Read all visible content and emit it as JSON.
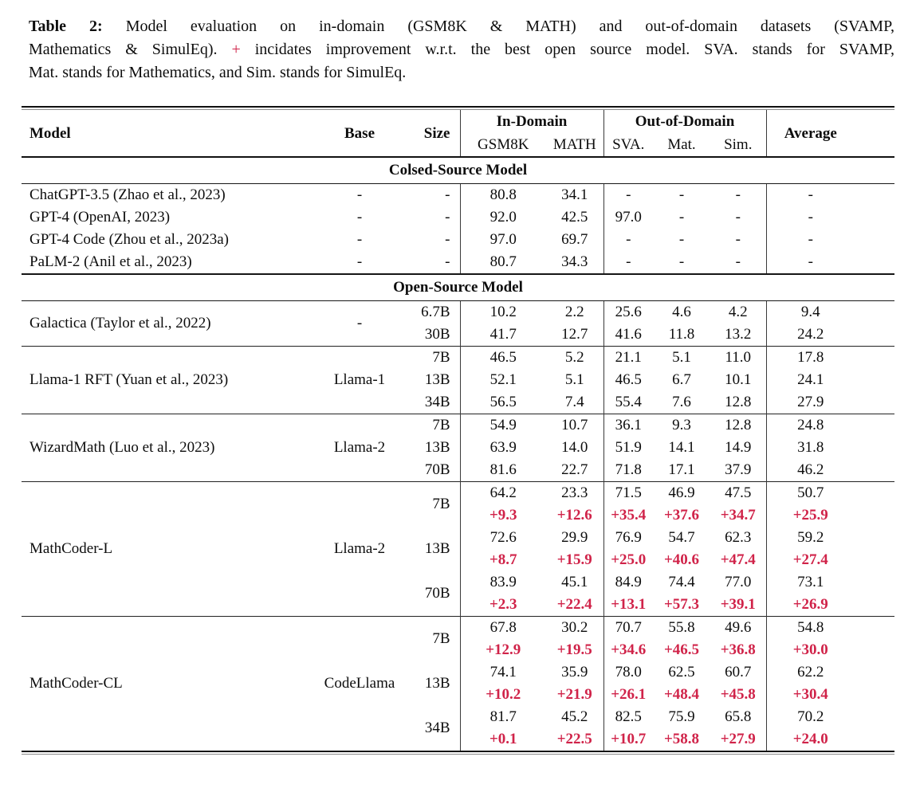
{
  "colors": {
    "accent_red": "#d02349"
  },
  "caption": {
    "label": "Table 2:",
    "line1_rest": "Model evaluation on in-domain (GSM8K & MATH) and out-of-domain datasets (SVAMP,",
    "line2_pre": "Mathematics & SimulEq).",
    "plus": "+",
    "line2_post": "incidates improvement w.r.t. the best open source model. SVA. stands for SVAMP,",
    "line3": "Mat. stands for Mathematics, and Sim. stands for SimulEq."
  },
  "table": {
    "columns": {
      "model": "Model",
      "base": "Base",
      "size": "Size",
      "in_domain": "In-Domain",
      "out_of_domain": "Out-of-Domain",
      "average": "Average",
      "sub": [
        "GSM8K",
        "MATH",
        "SVA.",
        "Mat.",
        "Sim."
      ]
    },
    "sections": [
      {
        "title": "Colsed-Source Model",
        "groups": [
          {
            "model": "ChatGPT-3.5 (Zhao et al., 2023)",
            "base": "-",
            "rule_above": false,
            "rows": [
              {
                "size": "-",
                "values": [
                  "80.8",
                  "34.1",
                  "-",
                  "-",
                  "-",
                  "-"
                ]
              }
            ]
          },
          {
            "model": "GPT-4 (OpenAI, 2023)",
            "base": "-",
            "rule_above": false,
            "rows": [
              {
                "size": "-",
                "values": [
                  "92.0",
                  "42.5",
                  "97.0",
                  "-",
                  "-",
                  "-"
                ]
              }
            ]
          },
          {
            "model": "GPT-4 Code (Zhou et al., 2023a)",
            "base": "-",
            "rule_above": false,
            "rows": [
              {
                "size": "-",
                "values": [
                  "97.0",
                  "69.7",
                  "-",
                  "-",
                  "-",
                  "-"
                ]
              }
            ]
          },
          {
            "model": "PaLM-2 (Anil et al., 2023)",
            "base": "-",
            "rule_above": false,
            "rows": [
              {
                "size": "-",
                "values": [
                  "80.7",
                  "34.3",
                  "-",
                  "-",
                  "-",
                  "-"
                ]
              }
            ]
          }
        ]
      },
      {
        "title": "Open-Source Model",
        "groups": [
          {
            "model": "Galactica (Taylor et al., 2022)",
            "base": "-",
            "rule_above": false,
            "rows": [
              {
                "size": "6.7B",
                "values": [
                  "10.2",
                  "2.2",
                  "25.6",
                  "4.6",
                  "4.2",
                  "9.4"
                ]
              },
              {
                "size": "30B",
                "values": [
                  "41.7",
                  "12.7",
                  "41.6",
                  "11.8",
                  "13.2",
                  "24.2"
                ]
              }
            ]
          },
          {
            "model": "Llama-1 RFT (Yuan et al., 2023)",
            "base": "Llama-1",
            "rule_above": true,
            "rows": [
              {
                "size": "7B",
                "values": [
                  "46.5",
                  "5.2",
                  "21.1",
                  "5.1",
                  "11.0",
                  "17.8"
                ]
              },
              {
                "size": "13B",
                "values": [
                  "52.1",
                  "5.1",
                  "46.5",
                  "6.7",
                  "10.1",
                  "24.1"
                ]
              },
              {
                "size": "34B",
                "values": [
                  "56.5",
                  "7.4",
                  "55.4",
                  "7.6",
                  "12.8",
                  "27.9"
                ]
              }
            ]
          },
          {
            "model": "WizardMath (Luo et al., 2023)",
            "base": "Llama-2",
            "rule_above": true,
            "rows": [
              {
                "size": "7B",
                "values": [
                  "54.9",
                  "10.7",
                  "36.1",
                  "9.3",
                  "12.8",
                  "24.8"
                ]
              },
              {
                "size": "13B",
                "values": [
                  "63.9",
                  "14.0",
                  "51.9",
                  "14.1",
                  "14.9",
                  "31.8"
                ]
              },
              {
                "size": "70B",
                "values": [
                  "81.6",
                  "22.7",
                  "71.8",
                  "17.1",
                  "37.9",
                  "46.2"
                ]
              }
            ]
          },
          {
            "model": "MathCoder-L",
            "base": "Llama-2",
            "rule_above": true,
            "rows": [
              {
                "size": "7B",
                "values": [
                  "64.2",
                  "23.3",
                  "71.5",
                  "46.9",
                  "47.5",
                  "50.7"
                ],
                "delta": [
                  "+9.3",
                  "+12.6",
                  "+35.4",
                  "+37.6",
                  "+34.7",
                  "+25.9"
                ]
              },
              {
                "size": "13B",
                "values": [
                  "72.6",
                  "29.9",
                  "76.9",
                  "54.7",
                  "62.3",
                  "59.2"
                ],
                "delta": [
                  "+8.7",
                  "+15.9",
                  "+25.0",
                  "+40.6",
                  "+47.4",
                  "+27.4"
                ]
              },
              {
                "size": "70B",
                "values": [
                  "83.9",
                  "45.1",
                  "84.9",
                  "74.4",
                  "77.0",
                  "73.1"
                ],
                "delta": [
                  "+2.3",
                  "+22.4",
                  "+13.1",
                  "+57.3",
                  "+39.1",
                  "+26.9"
                ]
              }
            ]
          },
          {
            "model": "MathCoder-CL",
            "base": "CodeLlama",
            "rule_above": true,
            "rows": [
              {
                "size": "7B",
                "values": [
                  "67.8",
                  "30.2",
                  "70.7",
                  "55.8",
                  "49.6",
                  "54.8"
                ],
                "delta": [
                  "+12.9",
                  "+19.5",
                  "+34.6",
                  "+46.5",
                  "+36.8",
                  "+30.0"
                ]
              },
              {
                "size": "13B",
                "values": [
                  "74.1",
                  "35.9",
                  "78.0",
                  "62.5",
                  "60.7",
                  "62.2"
                ],
                "delta": [
                  "+10.2",
                  "+21.9",
                  "+26.1",
                  "+48.4",
                  "+45.8",
                  "+30.4"
                ]
              },
              {
                "size": "34B",
                "values": [
                  "81.7",
                  "45.2",
                  "82.5",
                  "75.9",
                  "65.8",
                  "70.2"
                ],
                "delta": [
                  "+0.1",
                  "+22.5",
                  "+10.7",
                  "+58.8",
                  "+27.9",
                  "+24.0"
                ]
              }
            ]
          }
        ]
      }
    ]
  }
}
